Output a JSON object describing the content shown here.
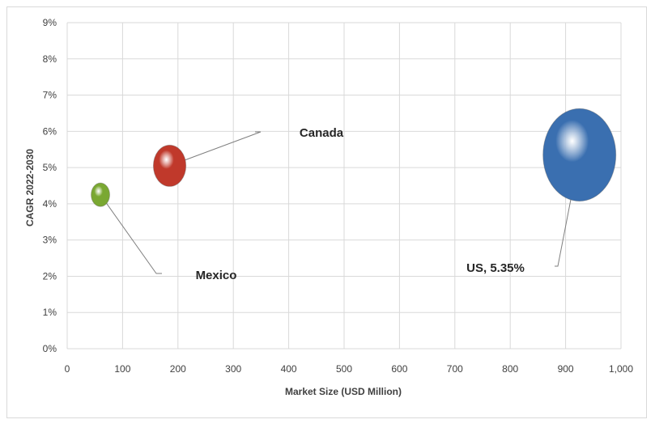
{
  "chart_data": {
    "type": "bubble",
    "title": "",
    "xlabel": "Market Size (USD Million)",
    "ylabel": "CAGR  2022-2030",
    "xlim": [
      0,
      1000
    ],
    "ylim": [
      0,
      9
    ],
    "x_ticks": [
      0,
      100,
      200,
      300,
      400,
      500,
      600,
      700,
      800,
      900,
      1000
    ],
    "x_tick_labels": [
      "0",
      "100",
      "200",
      "300",
      "400",
      "500",
      "600",
      "700",
      "800",
      "900",
      "1,000"
    ],
    "y_ticks": [
      0,
      1,
      2,
      3,
      4,
      5,
      6,
      7,
      8,
      9
    ],
    "y_tick_labels": [
      "0%",
      "1%",
      "2%",
      "3%",
      "4%",
      "5%",
      "6%",
      "7%",
      "8%",
      "9%"
    ],
    "grid": true,
    "points": [
      {
        "name": "US",
        "x": 925,
        "y": 5.35,
        "size": 925,
        "color": "#3a6fb0",
        "label": "US, 5.35%"
      },
      {
        "name": "Canada",
        "x": 185,
        "y": 5.05,
        "size": 185,
        "color": "#c0392b",
        "label": "Canada"
      },
      {
        "name": "Mexico",
        "x": 60,
        "y": 4.25,
        "size": 60,
        "color": "#7aa832",
        "label": "Mexico"
      }
    ]
  }
}
